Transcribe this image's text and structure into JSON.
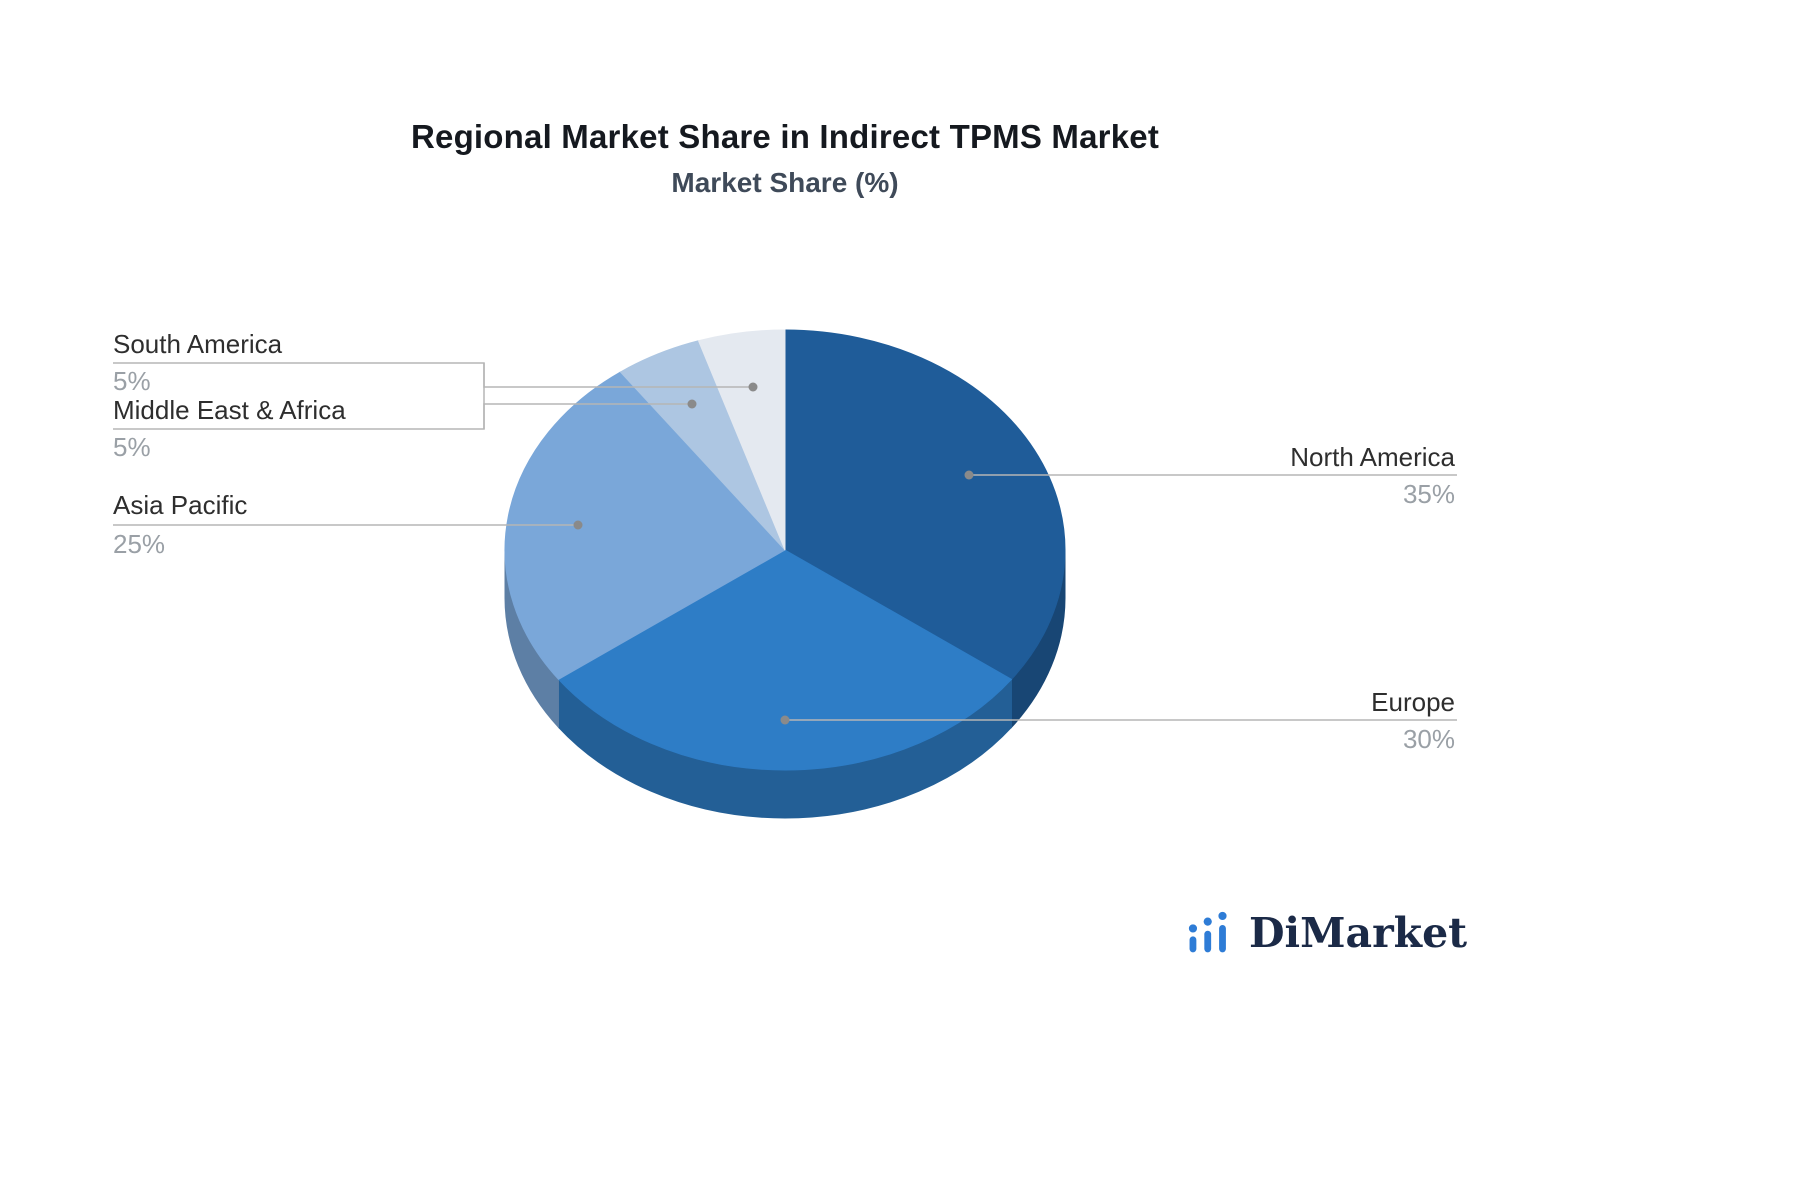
{
  "chart_data": {
    "type": "pie",
    "title": "Regional Market Share in Indirect TPMS Market",
    "subtitle": "Market Share (%)",
    "unit": "%",
    "style": "3d-pie",
    "start_angle_deg": -90,
    "direction": "clockwise",
    "background": "#ffffff",
    "slices": [
      {
        "label": "North America",
        "value": 35,
        "display": "35%",
        "color": "#1F5C99"
      },
      {
        "label": "Europe",
        "value": 30,
        "display": "30%",
        "color": "#2E7DC6"
      },
      {
        "label": "Asia Pacific",
        "value": 25,
        "display": "25%",
        "color": "#7AA7D9"
      },
      {
        "label": "Middle East & Africa",
        "value": 5,
        "display": "5%",
        "color": "#ADC6E2"
      },
      {
        "label": "South America",
        "value": 5,
        "display": "5%",
        "color": "#E4E9F0"
      }
    ],
    "label_text_color": "#2e2e2e",
    "value_text_color": "#9aa0a6",
    "leader_line_color": "#b5b5b5"
  },
  "logo": {
    "text": "DiMarket",
    "icon": "bar-chart-icon",
    "accent": "#2E7CD6",
    "text_color": "#1b2a47"
  }
}
